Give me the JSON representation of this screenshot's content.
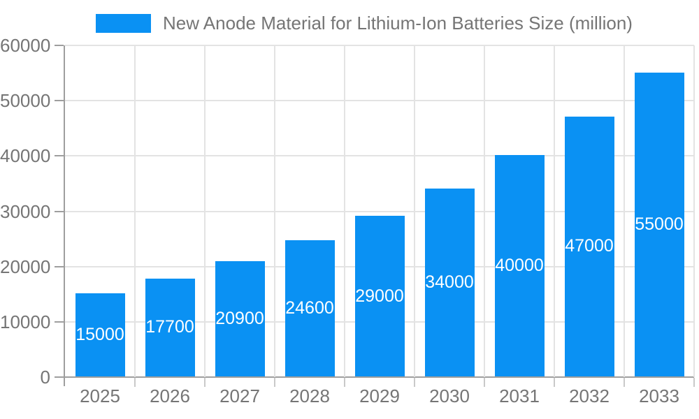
{
  "chart_data": {
    "type": "bar",
    "title": "New Anode Material for Lithium-Ion Batteries Size (million)",
    "categories": [
      "2025",
      "2026",
      "2027",
      "2028",
      "2029",
      "2030",
      "2031",
      "2032",
      "2033"
    ],
    "values": [
      15000,
      17700,
      20900,
      24600,
      29000,
      34000,
      40000,
      47000,
      55000
    ],
    "bar_labels": [
      "15000",
      "17700",
      "20900",
      "24600",
      "29000",
      "34000",
      "40000",
      "47000",
      "55000"
    ],
    "xlabel": "",
    "ylabel": "",
    "ylim": [
      0,
      60000
    ],
    "ytick_interval": 10000,
    "yticks": [
      "0",
      "10000",
      "20000",
      "30000",
      "40000",
      "50000",
      "60000"
    ],
    "legend_position": "top",
    "grid": true,
    "bar_color": "#0a91f3",
    "bar_label_color": "#ffffff",
    "axis_text_color": "#757575",
    "axis_line_color": "#9e9e9e",
    "gridline_color": "#e3e3e3"
  }
}
